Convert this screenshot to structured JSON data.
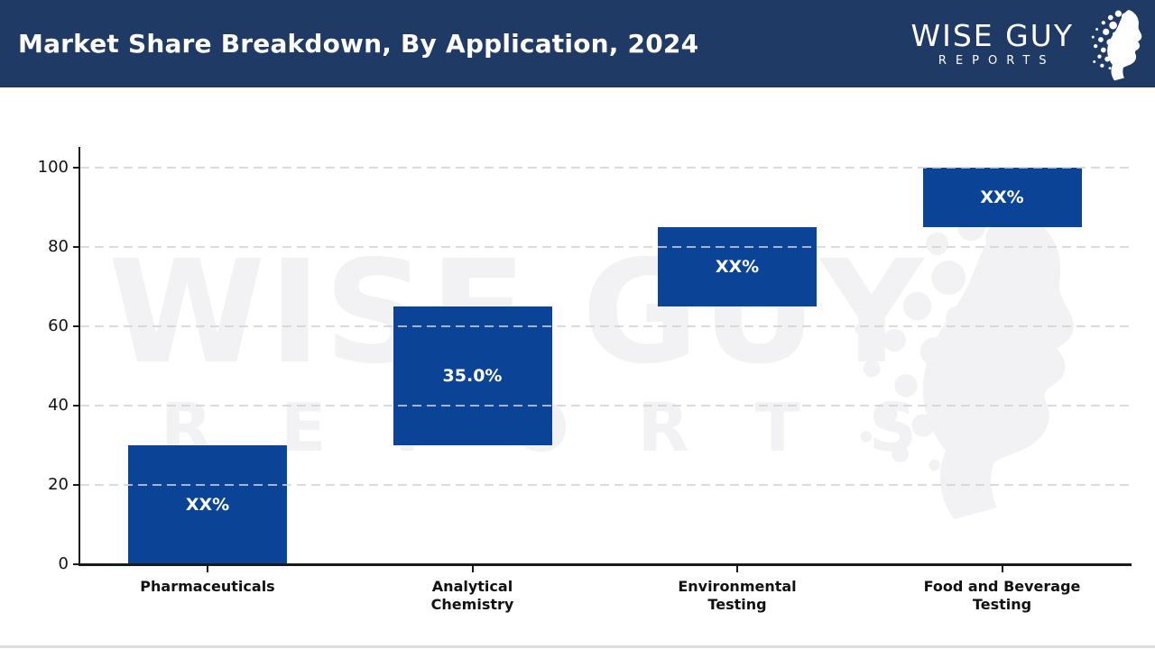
{
  "header": {
    "title": "Market Share Breakdown, By Application, 2024",
    "logo": {
      "brand": "WISE GUY",
      "sub": "REPORTS"
    }
  },
  "watermark": {
    "brand": "WISE GUY",
    "sub": "REPORTS"
  },
  "chart_data": {
    "type": "bar",
    "subtype": "floating-waterfall",
    "title": "Market Share Breakdown, By Application, 2024",
    "categories": [
      [
        "Pharmaceuticals"
      ],
      [
        "Analytical",
        "Chemistry"
      ],
      [
        "Environmental",
        "Testing"
      ],
      [
        "Food and Beverage",
        "Testing"
      ]
    ],
    "bars": [
      {
        "category": "Pharmaceuticals",
        "start": 0,
        "end": 30,
        "label": "XX%"
      },
      {
        "category": "Analytical Chemistry",
        "start": 30,
        "end": 65,
        "label": "35.0%"
      },
      {
        "category": "Environmental Testing",
        "start": 65,
        "end": 85,
        "label": "XX%"
      },
      {
        "category": "Food and Beverage Testing",
        "start": 85,
        "end": 100,
        "label": "XX%"
      }
    ],
    "y_ticks": [
      0,
      20,
      40,
      60,
      80,
      100
    ],
    "ylim": [
      0,
      105
    ],
    "grid": true,
    "legend_position": "none"
  },
  "colors": {
    "header_bg": "#1f3a64",
    "bar": "#0b4396",
    "axis": "#1a1a1a",
    "grid": "#d2d2d2",
    "watermark": "#f2f2f4",
    "bottom_line": "#dcdcdc"
  }
}
